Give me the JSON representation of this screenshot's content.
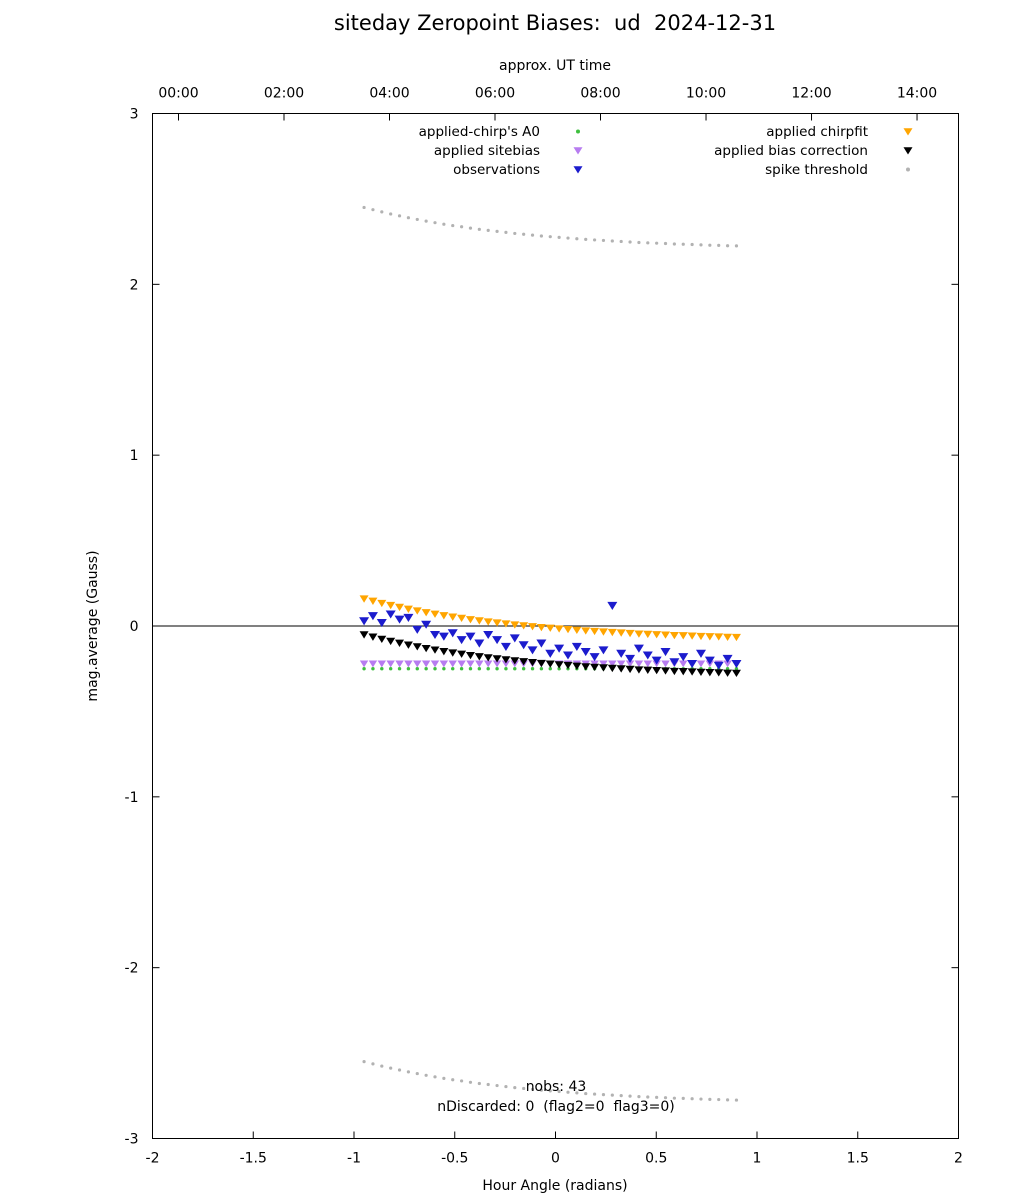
{
  "chart_data": {
    "type": "scatter",
    "title": "siteday Zeropoint Biases:  ud  2024-12-31",
    "top_axis_label": "approx. UT time",
    "xlabel": "Hour Angle (radians)",
    "ylabel": "mag.average (Gauss)",
    "xlim": [
      -2,
      2
    ],
    "ylim": [
      -3,
      3
    ],
    "grid": false,
    "zero_line": true,
    "x_ticks": [
      {
        "value": -2,
        "label": "-2"
      },
      {
        "value": -1.5,
        "label": "-1.5"
      },
      {
        "value": -1,
        "label": "-1"
      },
      {
        "value": -0.5,
        "label": "-0.5"
      },
      {
        "value": 0,
        "label": "0"
      },
      {
        "value": 0.5,
        "label": "0.5"
      },
      {
        "value": 1,
        "label": "1"
      },
      {
        "value": 1.5,
        "label": "1.5"
      },
      {
        "value": 2,
        "label": "2"
      }
    ],
    "y_ticks": [
      {
        "value": -3,
        "label": "-3"
      },
      {
        "value": -2,
        "label": "-2"
      },
      {
        "value": -1,
        "label": "-1"
      },
      {
        "value": 0,
        "label": "0"
      },
      {
        "value": 1,
        "label": "1"
      },
      {
        "value": 2,
        "label": "2"
      },
      {
        "value": 3,
        "label": "3"
      }
    ],
    "top_ticks": [
      {
        "value": -1.871,
        "label": "00:00"
      },
      {
        "value": -1.3474,
        "label": "02:00"
      },
      {
        "value": -0.8238,
        "label": "04:00"
      },
      {
        "value": -0.3002,
        "label": "06:00"
      },
      {
        "value": 0.2234,
        "label": "08:00"
      },
      {
        "value": 0.747,
        "label": "10:00"
      },
      {
        "value": 1.2706,
        "label": "12:00"
      },
      {
        "value": 1.7942,
        "label": "14:00"
      }
    ],
    "legend": {
      "position": "top-inside",
      "left": [
        {
          "label": "applied-chirp's A0",
          "marker": "dot",
          "color": "#3fbf3f",
          "size": 2
        },
        {
          "label": "applied sitebias",
          "marker": "triangle-down",
          "color": "#b77cf0",
          "size": 4.5
        },
        {
          "label": "observations",
          "marker": "triangle-down",
          "color": "#1c1ccd",
          "size": 4.5
        }
      ],
      "right": [
        {
          "label": "applied chirpfit",
          "marker": "triangle-down",
          "color": "#ffa500",
          "size": 4.5
        },
        {
          "label": "applied bias correction",
          "marker": "triangle-down",
          "color": "#000000",
          "size": 4.5
        },
        {
          "label": "spike threshold",
          "marker": "dot",
          "color": "#b2b2b2",
          "size": 2
        }
      ]
    },
    "annotations": [
      {
        "x": 0,
        "y": -2.7,
        "text": "nobs: 43"
      },
      {
        "x": 0,
        "y": -2.82,
        "text": "nDiscarded: 0  (flag2=0  flag3=0)"
      }
    ],
    "x": [
      -0.95,
      -0.906,
      -0.862,
      -0.818,
      -0.774,
      -0.73,
      -0.686,
      -0.642,
      -0.598,
      -0.554,
      -0.51,
      -0.466,
      -0.422,
      -0.378,
      -0.334,
      -0.29,
      -0.246,
      -0.202,
      -0.158,
      -0.114,
      -0.07,
      -0.026,
      0.018,
      0.062,
      0.106,
      0.15,
      0.194,
      0.238,
      0.282,
      0.326,
      0.37,
      0.414,
      0.458,
      0.502,
      0.546,
      0.59,
      0.634,
      0.678,
      0.722,
      0.766,
      0.81,
      0.854,
      0.898
    ],
    "series": [
      {
        "name": "spike threshold (upper)",
        "marker": "dot",
        "color": "#b2b2b2",
        "size": 1.6,
        "y": [
          2.45,
          2.437,
          2.424,
          2.412,
          2.401,
          2.39,
          2.38,
          2.37,
          2.361,
          2.352,
          2.344,
          2.337,
          2.329,
          2.322,
          2.316,
          2.31,
          2.304,
          2.298,
          2.293,
          2.288,
          2.283,
          2.279,
          2.275,
          2.271,
          2.267,
          2.263,
          2.26,
          2.257,
          2.254,
          2.251,
          2.248,
          2.245,
          2.243,
          2.241,
          2.239,
          2.236,
          2.235,
          2.233,
          2.231,
          2.229,
          2.228,
          2.226,
          2.225
        ]
      },
      {
        "name": "spike threshold (lower)",
        "marker": "dot",
        "color": "#b2b2b2",
        "size": 1.6,
        "y": [
          -2.55,
          -2.563,
          -2.576,
          -2.588,
          -2.599,
          -2.61,
          -2.62,
          -2.63,
          -2.639,
          -2.648,
          -2.656,
          -2.663,
          -2.671,
          -2.678,
          -2.684,
          -2.69,
          -2.696,
          -2.702,
          -2.707,
          -2.712,
          -2.717,
          -2.721,
          -2.725,
          -2.729,
          -2.733,
          -2.737,
          -2.74,
          -2.743,
          -2.746,
          -2.749,
          -2.752,
          -2.755,
          -2.757,
          -2.759,
          -2.761,
          -2.764,
          -2.765,
          -2.767,
          -2.769,
          -2.771,
          -2.772,
          -2.774,
          -2.775
        ]
      },
      {
        "name": "applied-chirp's A0",
        "marker": "dot",
        "color": "#3fbf3f",
        "size": 1.7,
        "y": [
          -0.25,
          -0.25,
          -0.25,
          -0.25,
          -0.25,
          -0.25,
          -0.25,
          -0.25,
          -0.25,
          -0.25,
          -0.25,
          -0.25,
          -0.25,
          -0.25,
          -0.25,
          -0.25,
          -0.25,
          -0.25,
          -0.25,
          -0.25,
          -0.25,
          -0.25,
          -0.25,
          -0.25,
          -0.25,
          -0.25,
          -0.25,
          -0.25,
          -0.25,
          -0.25,
          -0.25,
          -0.25,
          -0.25,
          -0.25,
          -0.25,
          -0.25,
          -0.25,
          -0.25,
          -0.25,
          -0.25,
          -0.25,
          -0.25,
          -0.25
        ]
      },
      {
        "name": "applied sitebias",
        "marker": "triangle-down",
        "color": "#b77cf0",
        "size": 4.2,
        "y": [
          -0.22,
          -0.22,
          -0.22,
          -0.22,
          -0.22,
          -0.22,
          -0.22,
          -0.22,
          -0.22,
          -0.22,
          -0.22,
          -0.22,
          -0.22,
          -0.22,
          -0.22,
          -0.22,
          -0.22,
          -0.22,
          -0.22,
          -0.22,
          -0.22,
          -0.22,
          -0.22,
          -0.22,
          -0.22,
          -0.22,
          -0.22,
          -0.22,
          -0.22,
          -0.22,
          -0.22,
          -0.22,
          -0.22,
          -0.22,
          -0.22,
          -0.22,
          -0.22,
          -0.22,
          -0.22,
          -0.22,
          -0.22,
          -0.22,
          -0.22
        ]
      },
      {
        "name": "applied chirpfit",
        "marker": "triangle-down",
        "color": "#ffa500",
        "size": 4.5,
        "y": [
          0.16,
          0.147,
          0.134,
          0.122,
          0.111,
          0.1,
          0.09,
          0.08,
          0.071,
          0.062,
          0.054,
          0.047,
          0.039,
          0.032,
          0.026,
          0.02,
          0.014,
          0.008,
          0.003,
          -0.002,
          -0.007,
          -0.011,
          -0.015,
          -0.019,
          -0.023,
          -0.027,
          -0.03,
          -0.033,
          -0.036,
          -0.039,
          -0.042,
          -0.045,
          -0.047,
          -0.049,
          -0.051,
          -0.054,
          -0.055,
          -0.057,
          -0.059,
          -0.061,
          -0.062,
          -0.064,
          -0.065
        ]
      },
      {
        "name": "applied bias correction",
        "marker": "triangle-down",
        "color": "#000000",
        "size": 4.5,
        "y": [
          -0.05,
          -0.063,
          -0.076,
          -0.088,
          -0.099,
          -0.11,
          -0.12,
          -0.13,
          -0.139,
          -0.148,
          -0.156,
          -0.163,
          -0.171,
          -0.178,
          -0.184,
          -0.19,
          -0.196,
          -0.202,
          -0.207,
          -0.212,
          -0.217,
          -0.221,
          -0.225,
          -0.229,
          -0.233,
          -0.237,
          -0.24,
          -0.243,
          -0.246,
          -0.249,
          -0.252,
          -0.255,
          -0.257,
          -0.259,
          -0.261,
          -0.264,
          -0.265,
          -0.267,
          -0.269,
          -0.271,
          -0.272,
          -0.274,
          -0.275
        ]
      },
      {
        "name": "observations",
        "marker": "triangle-down",
        "color": "#1c1ccd",
        "size": 5,
        "y": [
          0.03,
          0.06,
          0.02,
          0.07,
          0.04,
          0.05,
          -0.02,
          0.01,
          -0.05,
          -0.06,
          -0.04,
          -0.08,
          -0.06,
          -0.1,
          -0.05,
          -0.08,
          -0.12,
          -0.07,
          -0.11,
          -0.14,
          -0.1,
          -0.16,
          -0.13,
          -0.17,
          -0.12,
          -0.15,
          -0.18,
          -0.14,
          0.12,
          -0.16,
          -0.19,
          -0.13,
          -0.17,
          -0.2,
          -0.15,
          -0.21,
          -0.18,
          -0.22,
          -0.16,
          -0.2,
          -0.23,
          -0.19,
          -0.22
        ]
      }
    ],
    "counts": {
      "nobs": 43,
      "nDiscarded": 0,
      "flag2": 0,
      "flag3": 0
    }
  }
}
